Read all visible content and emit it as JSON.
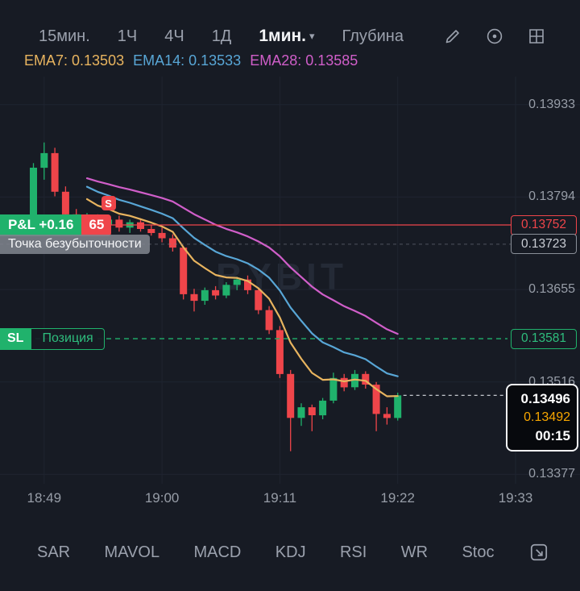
{
  "colors": {
    "background": "#171b24",
    "green": "#20b26c",
    "red": "#ef454a",
    "orange": "#f7a600",
    "ema7": "#e8b45f",
    "ema14": "#58a6d6",
    "ema28": "#d05ec9",
    "text_muted": "#9ba1ad",
    "text_bright": "#f3f5f8"
  },
  "icons": {
    "chevron_down_glyph": "▾",
    "toolbar_icons": [
      "draw-icon",
      "target-icon",
      "grid-layout-icon"
    ],
    "bottom_icon": "expand-icon"
  },
  "toolbar": {
    "timeframes": [
      "15мин.",
      "1Ч",
      "4Ч",
      "1Д"
    ],
    "active_timeframe": "1мин.",
    "depth_label": "Глубина"
  },
  "ema_legend": {
    "ema7": "EMA7: 0.13503",
    "ema14": "EMA14: 0.13533",
    "ema28": "EMA28: 0.13585"
  },
  "overlays": {
    "pnl_label": "P&L +0.16",
    "pnl_badge": "65",
    "breakeven_label": "Точка безубыточности",
    "sl_label": "SL",
    "position_label": "Позиция",
    "sell_marker": "S"
  },
  "price_boxes": {
    "entry": "0.13752",
    "breakeven": "0.13723",
    "stop": "0.13581"
  },
  "last_price_panel": {
    "last": "0.13496",
    "mark": "0.13492",
    "countdown": "00:15"
  },
  "watermark": "BYBIT",
  "bottom_bar": {
    "indicators": [
      "SAR",
      "MAVOL",
      "MACD",
      "KDJ",
      "RSI",
      "WR",
      "Stoc"
    ]
  },
  "chart_data": {
    "type": "candlestick",
    "ylim": [
      0.13363,
      0.13975
    ],
    "y_ticks": [
      {
        "p": 0.13933,
        "label": "0.13933"
      },
      {
        "p": 0.13794,
        "label": "0.13794"
      },
      {
        "p": 0.13655,
        "label": "0.13655"
      },
      {
        "p": 0.13516,
        "label": "0.13516"
      },
      {
        "p": 0.13377,
        "label": "0.13377"
      }
    ],
    "x_ticks": [
      {
        "i": 1,
        "label": "18:49"
      },
      {
        "i": 12,
        "label": "19:00"
      },
      {
        "i": 23,
        "label": "19:11"
      },
      {
        "i": 34,
        "label": "19:22"
      },
      {
        "i": 45,
        "label": "19:33"
      }
    ],
    "lines": {
      "entry": 0.13752,
      "breakeven": 0.13723,
      "stop": 0.13581,
      "last": 0.13496
    },
    "ema_periods": [
      7,
      14,
      28
    ],
    "sell_marker_index": 7,
    "candles": [
      [
        0.1376,
        0.13845,
        0.1375,
        0.13838
      ],
      [
        0.13838,
        0.13876,
        0.1382,
        0.1386
      ],
      [
        0.1386,
        0.13868,
        0.13795,
        0.13802
      ],
      [
        0.13802,
        0.1381,
        0.1376,
        0.13768
      ],
      [
        0.13768,
        0.13776,
        0.13744,
        0.13752
      ],
      [
        0.13752,
        0.1377,
        0.13746,
        0.13762
      ],
      [
        0.13762,
        0.13768,
        0.13748,
        0.13752
      ],
      [
        0.13752,
        0.13764,
        0.13744,
        0.1376
      ],
      [
        0.1376,
        0.13766,
        0.13742,
        0.13748
      ],
      [
        0.13748,
        0.1376,
        0.1374,
        0.13756
      ],
      [
        0.13756,
        0.13762,
        0.13742,
        0.13746
      ],
      [
        0.13746,
        0.13752,
        0.13736,
        0.1374
      ],
      [
        0.1374,
        0.13748,
        0.13726,
        0.13732
      ],
      [
        0.13732,
        0.13738,
        0.13712,
        0.13718
      ],
      [
        0.13718,
        0.1372,
        0.1364,
        0.13648
      ],
      [
        0.13648,
        0.13656,
        0.13622,
        0.13638
      ],
      [
        0.13638,
        0.13658,
        0.13632,
        0.13654
      ],
      [
        0.13654,
        0.1366,
        0.1364,
        0.13646
      ],
      [
        0.13646,
        0.13666,
        0.13642,
        0.13662
      ],
      [
        0.13662,
        0.13674,
        0.13654,
        0.1367
      ],
      [
        0.1367,
        0.13676,
        0.13648,
        0.13654
      ],
      [
        0.13654,
        0.13658,
        0.13618,
        0.13624
      ],
      [
        0.13624,
        0.1363,
        0.13588,
        0.13594
      ],
      [
        0.13594,
        0.136,
        0.13522,
        0.13528
      ],
      [
        0.13528,
        0.13534,
        0.13412,
        0.13462
      ],
      [
        0.13462,
        0.13484,
        0.1345,
        0.13478
      ],
      [
        0.13478,
        0.13482,
        0.13442,
        0.13466
      ],
      [
        0.13466,
        0.13492,
        0.1346,
        0.13488
      ],
      [
        0.13488,
        0.1353,
        0.13484,
        0.13522
      ],
      [
        0.13522,
        0.13528,
        0.13502,
        0.13508
      ],
      [
        0.13508,
        0.13534,
        0.13504,
        0.13528
      ],
      [
        0.13528,
        0.13532,
        0.13506,
        0.13512
      ],
      [
        0.13512,
        0.13516,
        0.13442,
        0.13468
      ],
      [
        0.13468,
        0.13478,
        0.13452,
        0.13462
      ],
      [
        0.13462,
        0.135,
        0.13458,
        0.13496
      ]
    ]
  }
}
